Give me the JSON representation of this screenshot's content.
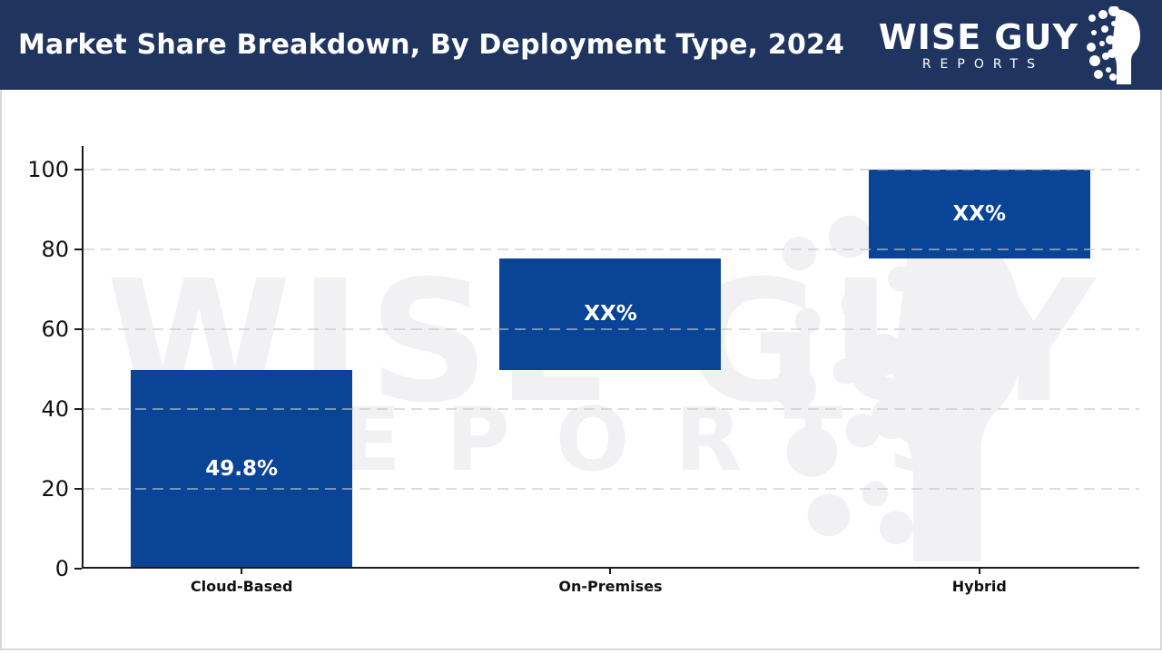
{
  "header": {
    "title": "Market Share Breakdown, By Deployment Type, 2024",
    "bg_color": "#1f3560",
    "logo": {
      "line1": "WISE GUY",
      "line2": "REPORTS"
    }
  },
  "watermark": {
    "line1": "WISE GUY",
    "line2": "REPORTS"
  },
  "chart_data": {
    "type": "bar",
    "variant": "waterfall",
    "title": "Market Share Breakdown, By Deployment Type, 2024",
    "categories": [
      "Cloud-Based",
      "On-Premises",
      "Hybrid"
    ],
    "segments": [
      {
        "category": "Cloud-Based",
        "start": 0,
        "end": 49.8,
        "label": "49.8%"
      },
      {
        "category": "On-Premises",
        "start": 49.8,
        "end": 77.8,
        "label": "XX%"
      },
      {
        "category": "Hybrid",
        "start": 77.8,
        "end": 100,
        "label": "XX%"
      }
    ],
    "xlabel": "",
    "ylabel": "",
    "ylim": [
      0,
      100
    ],
    "yticks": [
      "0",
      "20",
      "40",
      "60",
      "80",
      "100"
    ],
    "grid": "horizontal-dashed-above-bars",
    "legend": "none",
    "bar_color": "#0a4496",
    "bar_label_color": "#ffffff",
    "axis_color": "#1a1a1a",
    "grid_color": "#c6c6c6"
  }
}
